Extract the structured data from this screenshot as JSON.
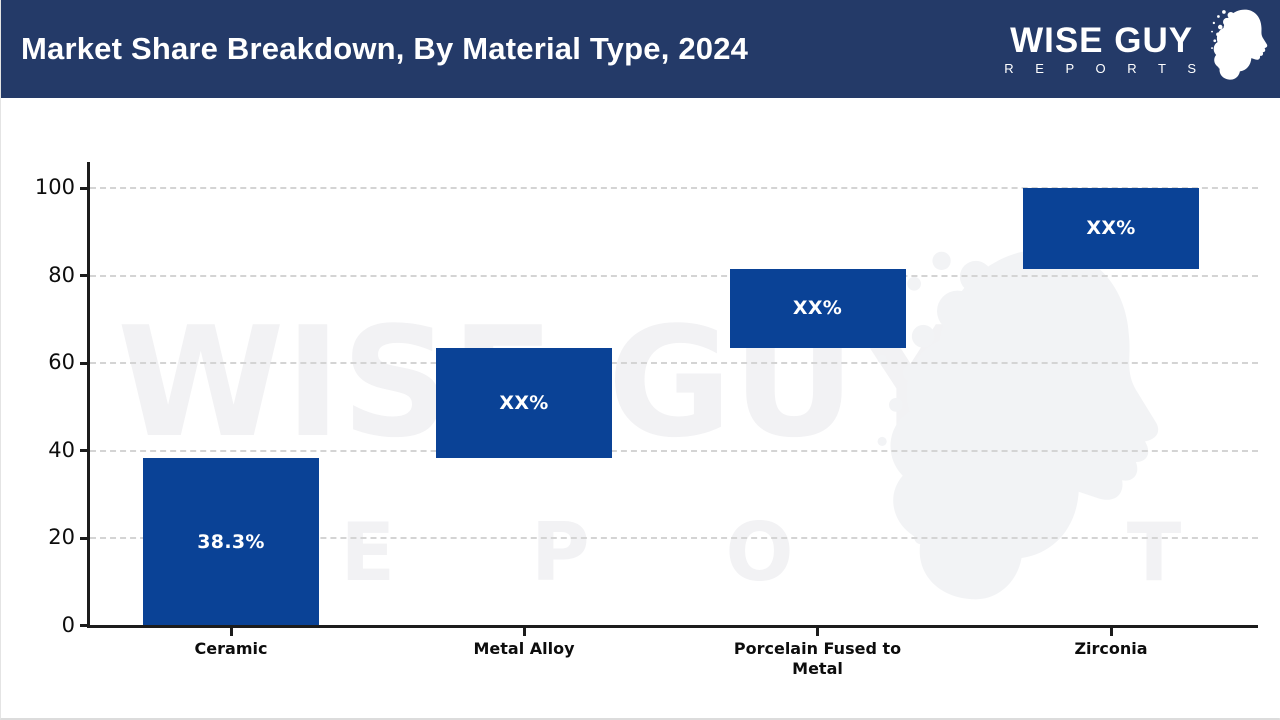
{
  "header": {
    "title": "Market Share Breakdown, By Material Type, 2024",
    "bg_color": "#243a68",
    "logo": {
      "line1": "WISE GUY",
      "line2": "R E P O R T S"
    }
  },
  "watermark": {
    "line1": "WISE GUY",
    "line2": "R E P O R T S"
  },
  "chart_data": {
    "type": "bar",
    "subtype": "floating-waterfall-bars",
    "title": "Market Share Breakdown, By Material Type, 2024",
    "categories": [
      "Ceramic",
      "Metal Alloy",
      "Porcelain Fused to Metal",
      "Zirconia"
    ],
    "segments": [
      {
        "category": "Ceramic",
        "start": 0,
        "end": 38.3,
        "label": "38.3%"
      },
      {
        "category": "Metal Alloy",
        "start": 38.3,
        "end": 63.5,
        "label": "XX%"
      },
      {
        "category": "Porcelain Fused to Metal",
        "start": 63.5,
        "end": 81.5,
        "label": "XX%"
      },
      {
        "category": "Zirconia",
        "start": 81.5,
        "end": 100,
        "label": "XX%"
      }
    ],
    "y_ticks": [
      0,
      20,
      40,
      60,
      80,
      100
    ],
    "ylim": [
      0,
      106
    ],
    "grid": "horizontal-dashed",
    "legend": "none",
    "bar_color": "#0a4296",
    "bar_label_color": "#ffffff",
    "axis_color": "#1c1c1c",
    "gridline_color": "#d4d4d4"
  }
}
